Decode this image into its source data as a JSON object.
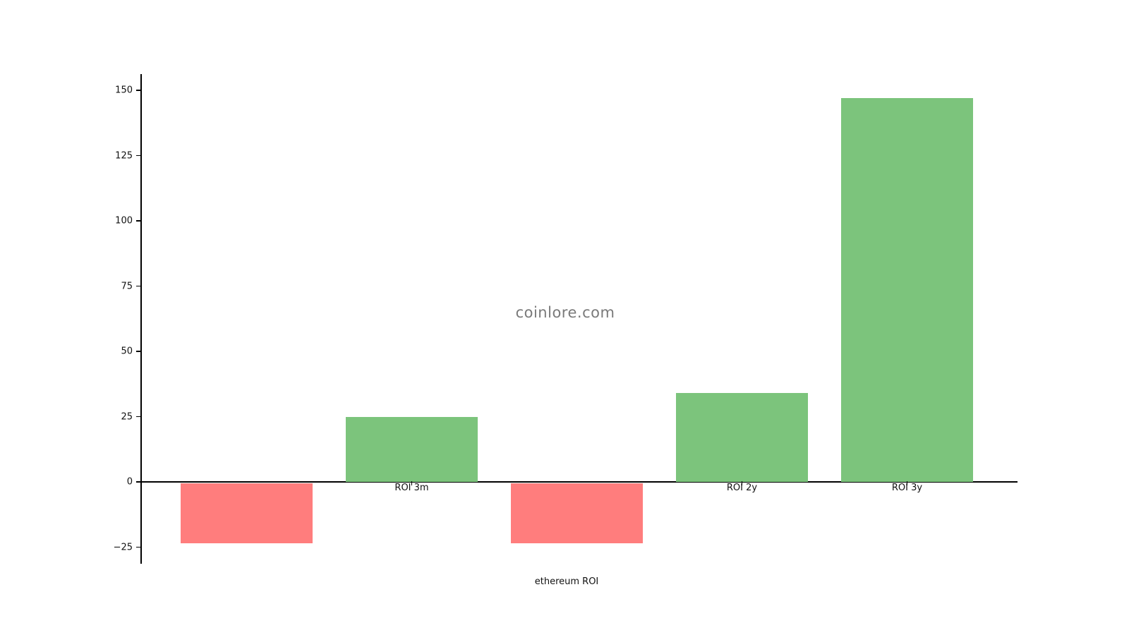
{
  "watermark": {
    "text": "coinlore.com",
    "color": "#7a7a7a"
  },
  "chart_data": {
    "type": "bar",
    "title": "",
    "xlabel": "ethereum ROI",
    "ylabel": "",
    "categories": [
      "",
      "ROI 3m",
      "",
      "ROI 2y",
      "ROI 3y"
    ],
    "values": [
      -23,
      25,
      -23,
      34,
      147
    ],
    "yticks": [
      -25,
      0,
      25,
      50,
      75,
      100,
      125,
      150
    ],
    "ylim": [
      -32,
      156
    ],
    "positive_color": "#7cc47c",
    "negative_color": "#ff7d7d",
    "axis_color": "#000000",
    "grid": false,
    "legend_position": "none"
  }
}
